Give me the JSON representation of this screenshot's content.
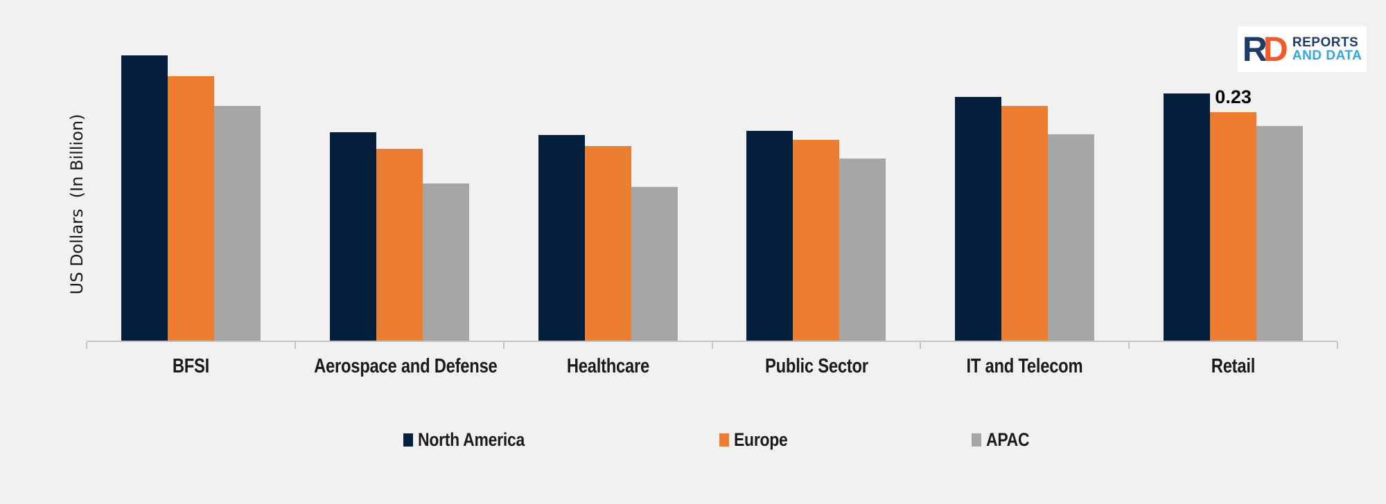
{
  "page": {
    "background_color": "#F1F1F1",
    "axis_color": "#C4C4C4"
  },
  "logo": {
    "mark_r": "R",
    "mark_d": "D",
    "line1": "REPORTS",
    "line2": "AND DATA",
    "mark_r_color": "#1F3C68",
    "mark_d_color": "#F15B2B",
    "line1_color": "#1F3C68",
    "line2_color": "#31A5DE"
  },
  "chart_data": {
    "type": "bar",
    "title": "",
    "ylabel": "US Dollars  (In Billion)",
    "xlabel": "",
    "categories": [
      "BFSI",
      "Aerospace and Defense",
      "Healthcare",
      "Public Sector",
      "IT and Telecom",
      "Retail"
    ],
    "series": [
      {
        "name": "North America",
        "color": "#041F3B",
        "values": [
          0.287,
          0.21,
          0.207,
          0.211,
          0.245,
          0.249
        ]
      },
      {
        "name": "Europe",
        "color": "#ED7D31",
        "values": [
          0.266,
          0.193,
          0.196,
          0.202,
          0.236,
          0.23
        ]
      },
      {
        "name": "APAC",
        "color": "#A6A6A6",
        "values": [
          0.236,
          0.158,
          0.155,
          0.183,
          0.208,
          0.216
        ]
      }
    ],
    "data_labels": [
      {
        "series_index": 1,
        "category_index": 5,
        "text": "0.23"
      }
    ],
    "ylim": [
      0,
      0.34
    ],
    "y_axis_ticks_visible": false,
    "grid": false,
    "legend_position": "bottom"
  }
}
